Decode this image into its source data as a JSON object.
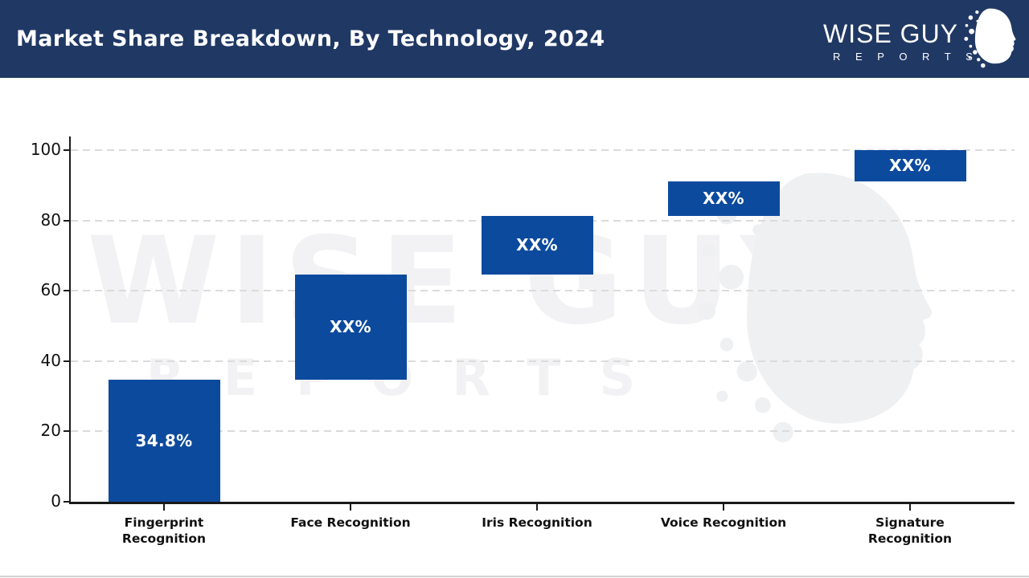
{
  "header": {
    "title": "Market Share Breakdown, By Technology, 2024",
    "logo": {
      "line1": "WISE GUY",
      "line2": "R E P O R T S"
    }
  },
  "watermark": {
    "line1": "WISE GUY",
    "line2": "REPORTS"
  },
  "colors": {
    "header_bg": "#203864",
    "bar": "#0c4a9e",
    "bar_label": "#ffffff",
    "grid": "#dbdbdb",
    "axis": "#1a1a1a",
    "watermark": "#f2f2f4"
  },
  "chart_data": {
    "type": "bar",
    "subtype": "waterfall",
    "title": "Market Share Breakdown, By Technology, 2024",
    "categories": [
      "Fingerprint\nRecognition",
      "Face Recognition",
      "Iris Recognition",
      "Voice Recognition",
      "Signature\nRecognition"
    ],
    "series": [
      {
        "name": "Fingerprint Recognition",
        "start": 0,
        "end": 34.8,
        "label": "34.8%"
      },
      {
        "name": "Face Recognition",
        "start": 34.8,
        "end": 64.7,
        "label": "XX%"
      },
      {
        "name": "Iris Recognition",
        "start": 64.7,
        "end": 81.3,
        "label": "XX%"
      },
      {
        "name": "Voice Recognition",
        "start": 81.3,
        "end": 91.1,
        "label": "XX%"
      },
      {
        "name": "Signature Recognition",
        "start": 91.1,
        "end": 100,
        "label": "XX%"
      }
    ],
    "ylim": [
      0,
      100
    ],
    "yticks": [
      0,
      20,
      40,
      60,
      80,
      100
    ],
    "xlabel": "",
    "ylabel": "",
    "grid": "horizontal-dashed",
    "legend": "none"
  }
}
